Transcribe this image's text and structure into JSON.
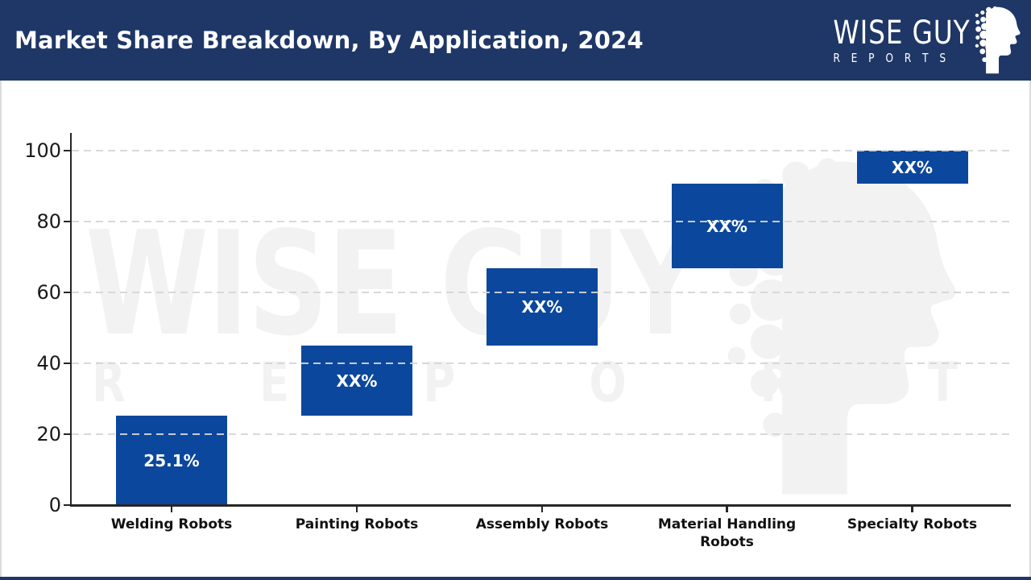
{
  "header": {
    "title": "Market Share Breakdown, By Application, 2024",
    "logo": {
      "line1": "WISE GUY",
      "line2": "R E P O R T S"
    }
  },
  "watermark": {
    "line1": "WISE GUY",
    "line2": "R E P O R T S"
  },
  "colors": {
    "navy": "#1f3766",
    "bar_blue": "#0b479d",
    "grid": "#d9d9d9",
    "axis": "#262626",
    "bar_label": "#ffffff",
    "watermark": "#f2f2f2"
  },
  "chart_data": {
    "type": "bar",
    "subtype": "floating-segment (waterfall-style market share breakdown)",
    "title": "Market Share Breakdown, By Application, 2024",
    "xlabel": "",
    "ylabel": "",
    "ylim": [
      0,
      105
    ],
    "yticks": [
      0,
      20,
      40,
      60,
      80,
      100
    ],
    "grid": "horizontal dashed, drawn over bars",
    "legend": "none",
    "bar_color": "#0b479d",
    "bars": [
      {
        "category": "Welding Robots",
        "from": 0,
        "to": 25.1,
        "label": "25.1%"
      },
      {
        "category": "Painting Robots",
        "from": 25.1,
        "to": 44.9,
        "label": "XX%"
      },
      {
        "category": "Assembly Robots",
        "from": 44.9,
        "to": 66.8,
        "label": "XX%"
      },
      {
        "category": "Material Handling Robots",
        "from": 66.8,
        "to": 90.5,
        "label": "XX%"
      },
      {
        "category": "Specialty Robots",
        "from": 90.5,
        "to": 100,
        "label": "XX%"
      }
    ]
  }
}
